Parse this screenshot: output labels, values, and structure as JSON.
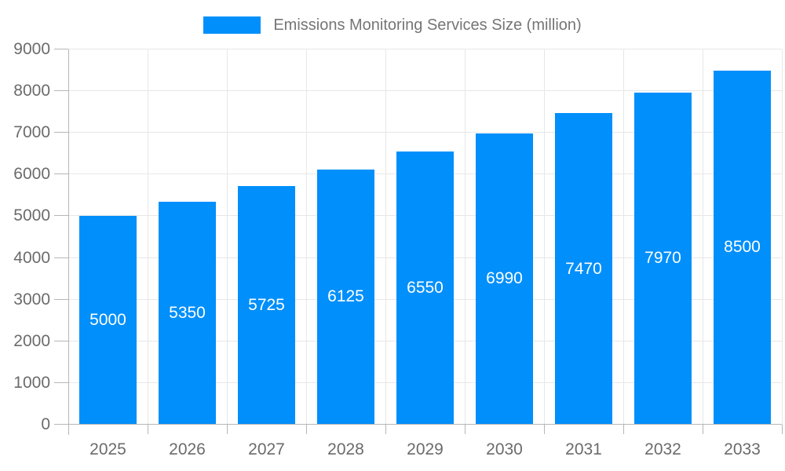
{
  "legend": {
    "label": "Emissions Monitoring Services Size (million)"
  },
  "colors": {
    "bar": "#008FFB",
    "grid": "#e7e7e7",
    "axis": "#b6b6b6",
    "axis_label": "#6b6b6b",
    "legend_text": "#757575",
    "bar_label": "#ffffff",
    "background": "#ffffff"
  },
  "chart_data": {
    "type": "bar",
    "title": "Emissions Monitoring Services Size (million)",
    "categories": [
      "2025",
      "2026",
      "2027",
      "2028",
      "2029",
      "2030",
      "2031",
      "2032",
      "2033"
    ],
    "values": [
      5000,
      5350,
      5725,
      6125,
      6550,
      6990,
      7470,
      7970,
      8500
    ],
    "series": [
      {
        "name": "Emissions Monitoring Services Size (million)",
        "values": [
          5000,
          5350,
          5725,
          6125,
          6550,
          6990,
          7470,
          7970,
          8500
        ]
      }
    ],
    "xlabel": "",
    "ylabel": "",
    "ylim": [
      0,
      9000
    ],
    "ytick_step": 1000,
    "yticks": [
      0,
      1000,
      2000,
      3000,
      4000,
      5000,
      6000,
      7000,
      8000,
      9000
    ],
    "grid": true,
    "gridlines": "horizontal-and-category-boundaries",
    "legend_position": "top",
    "data_labels": "inside-center-white"
  }
}
